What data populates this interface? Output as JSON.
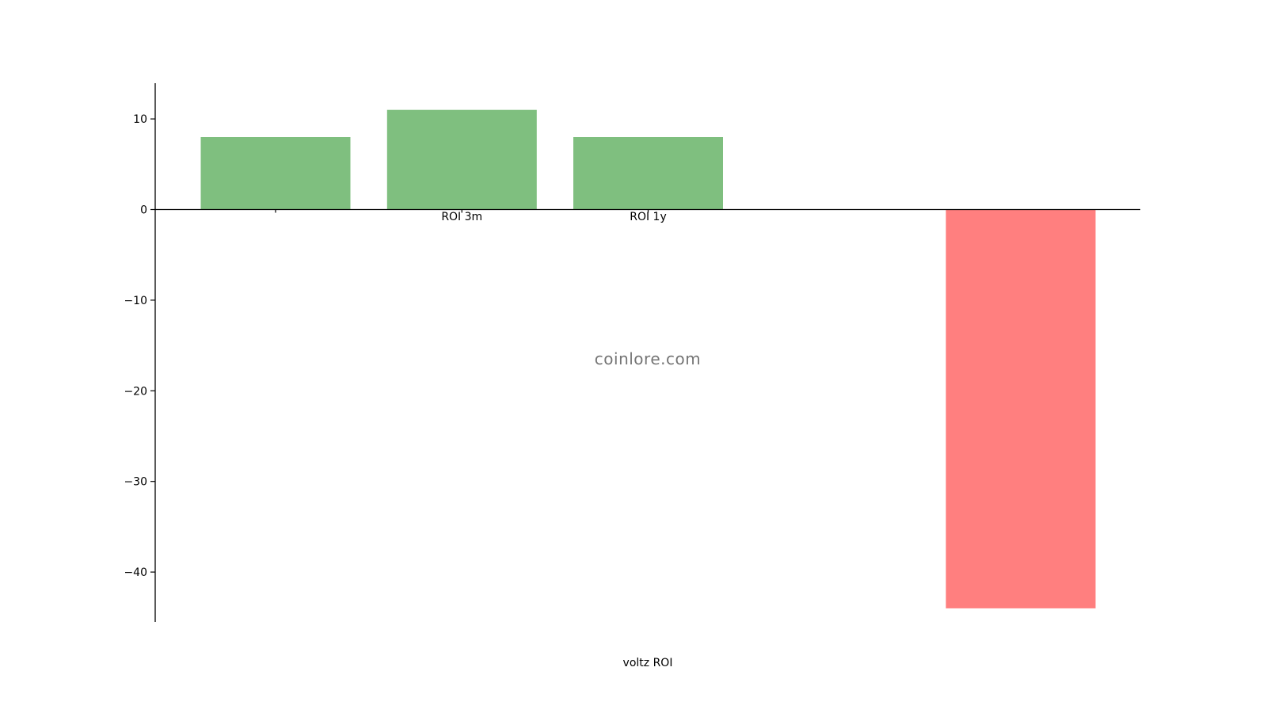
{
  "page": {
    "background_color": "#ffffff"
  },
  "watermark": {
    "text": "coinlore.com",
    "color": "#757575"
  },
  "chart_data": {
    "type": "bar",
    "title": "",
    "xlabel": "voltz ROI",
    "ylabel": "",
    "categories": [
      "",
      "ROI 3m",
      "ROI 1y",
      "",
      ""
    ],
    "values": [
      8,
      11,
      8,
      null,
      -44
    ],
    "xtick_mark_visible": [
      true,
      true,
      true,
      false,
      false
    ],
    "yticks": [
      {
        "value": 10,
        "label": "10"
      },
      {
        "value": 0,
        "label": "0"
      },
      {
        "value": -10,
        "label": "−10"
      },
      {
        "value": -20,
        "label": "−20"
      },
      {
        "value": -30,
        "label": "−30"
      },
      {
        "value": -40,
        "label": "−40"
      }
    ],
    "ylim": [
      -45.5,
      14
    ],
    "grid": false,
    "legend": null,
    "colors": {
      "positive_bar": "#7fbf7f",
      "negative_bar": "#ff7f7f",
      "axis": "#000000",
      "tick_label": "#000000"
    }
  }
}
